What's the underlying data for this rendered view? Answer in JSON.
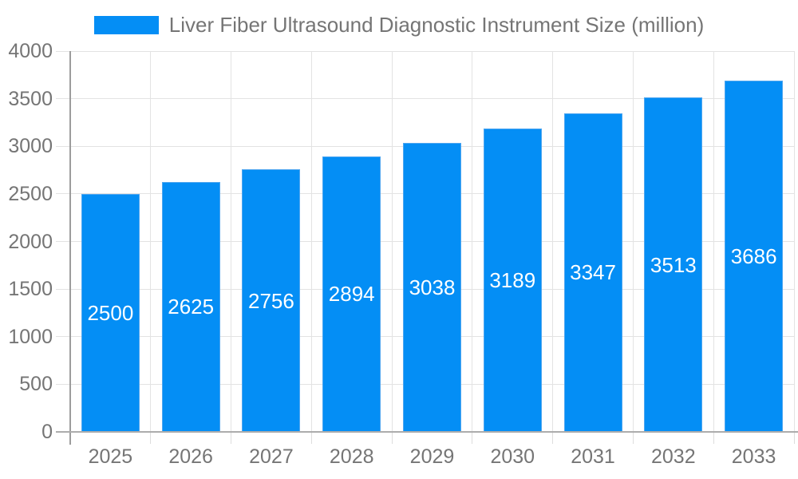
{
  "chart_data": {
    "type": "bar",
    "title": "Liver Fiber Ultrasound Diagnostic Instrument Size (million)",
    "legend": {
      "label": "Liver Fiber Ultrasound Diagnostic Instrument Size (million)",
      "position": "top"
    },
    "categories": [
      "2025",
      "2026",
      "2027",
      "2028",
      "2029",
      "2030",
      "2031",
      "2032",
      "2033"
    ],
    "series": [
      {
        "name": "Liver Fiber Ultrasound Diagnostic Instrument Size (million)",
        "values": [
          2500,
          2625,
          2756,
          2894,
          3038,
          3189,
          3347,
          3513,
          3686
        ]
      }
    ],
    "xlabel": "",
    "ylabel": "",
    "ylim": [
      0,
      4000
    ],
    "ytick_step": 500,
    "y_tick_labels": [
      "0",
      "500",
      "1000",
      "1500",
      "2000",
      "2500",
      "3000",
      "3500",
      "4000"
    ],
    "grid": true,
    "bar_label_position": "inside-middle",
    "colors": {
      "bar": "#048EF5",
      "bar_border": "#4FA6F0",
      "grid": "#E3E3E3",
      "y_axis_line": "#9C9C9C",
      "x_axis_line": "#ACACAC",
      "axis_text": "#757575",
      "bar_label_text": "#FFFFFF",
      "background": "#FFFFFF"
    }
  }
}
